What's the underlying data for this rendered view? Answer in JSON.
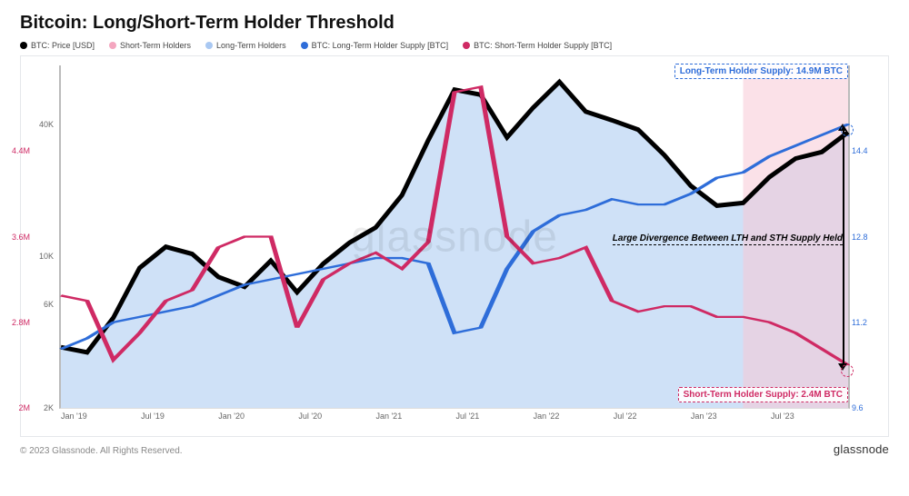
{
  "title": "Bitcoin: Long/Short-Term Holder Threshold",
  "legend": {
    "price": {
      "label": "BTC: Price [USD]",
      "color": "#000000"
    },
    "sth": {
      "label": "Short-Term Holders",
      "color": "#f4a6bf"
    },
    "lth": {
      "label": "Long-Term Holders",
      "color": "#a9c8f2"
    },
    "lth_sup": {
      "label": "BTC: Long-Term Holder Supply [BTC]",
      "color": "#2e6dd9"
    },
    "sth_sup": {
      "label": "BTC: Short-Term Holder Supply [BTC]",
      "color": "#cf2a64"
    }
  },
  "watermark": "glassnode",
  "footer": {
    "copyright": "© 2023 Glassnode. All Rights Reserved.",
    "brand": "glassnode"
  },
  "colors": {
    "price": "#000000",
    "lth_fill": "#cfe1f7",
    "sth_fill": "#f8c9d6",
    "lth_line": "#2e6dd9",
    "sth_line": "#cf2a64",
    "grid": "#e5e7eb",
    "bg": "#ffffff"
  },
  "axes": {
    "x": {
      "ticks": [
        "Jan '19",
        "Jul '19",
        "Jan '20",
        "Jul '20",
        "Jan '21",
        "Jul '21",
        "Jan '22",
        "Jul '22",
        "Jan '23",
        "Jul '23"
      ],
      "range": [
        0,
        60
      ]
    },
    "y_price": {
      "scale": "log",
      "ticks": [
        "2K",
        "6K",
        "10K",
        "40K"
      ],
      "tick_vals": [
        2000,
        6000,
        10000,
        40000
      ],
      "min": 2000,
      "max": 75000
    },
    "y_sth": {
      "ticks": [
        "2M",
        "2.8M",
        "3.6M",
        "4.4M"
      ],
      "tick_vals": [
        2.0,
        2.8,
        3.6,
        4.4
      ],
      "min": 2.0,
      "max": 5.2,
      "color": "#cf2a64"
    },
    "y_lth": {
      "ticks": [
        "9.6",
        "11.2",
        "12.8",
        "14.4"
      ],
      "tick_vals": [
        9.6,
        11.2,
        12.8,
        14.4
      ],
      "min": 9.6,
      "max": 16.0,
      "color": "#2e6dd9"
    }
  },
  "annotations": {
    "lth_box": {
      "text": "Long-Term Holder Supply: 14.9M BTC",
      "color": "#2e6dd9"
    },
    "sth_box": {
      "text": "Short-Term Holder Supply: 2.4M BTC",
      "color": "#cf2a64"
    },
    "divergence": {
      "text": "Large Divergence Between LTH and STH Supply Held",
      "color": "#000000"
    }
  },
  "sth_highlight": {
    "start_month": 52,
    "end_month": 60,
    "fill": "#f8c9d6"
  },
  "series": {
    "months": [
      0,
      2,
      4,
      6,
      8,
      10,
      12,
      14,
      16,
      18,
      20,
      22,
      24,
      26,
      28,
      30,
      32,
      34,
      36,
      38,
      40,
      42,
      44,
      46,
      48,
      50,
      52,
      54,
      56,
      58,
      60
    ],
    "price_usd": [
      3800,
      3600,
      5200,
      8800,
      11000,
      10200,
      8000,
      7200,
      9500,
      6800,
      9200,
      11500,
      13500,
      19000,
      34000,
      58000,
      55000,
      35000,
      48000,
      63000,
      46000,
      42000,
      38000,
      29000,
      21000,
      17000,
      17500,
      23000,
      28000,
      30000,
      37000
    ],
    "sth_supply_m": [
      3.05,
      3.0,
      2.45,
      2.7,
      3.0,
      3.1,
      3.5,
      3.6,
      3.6,
      2.75,
      3.2,
      3.35,
      3.45,
      3.3,
      3.55,
      4.95,
      5.0,
      3.6,
      3.35,
      3.4,
      3.5,
      3.0,
      2.9,
      2.95,
      2.95,
      2.85,
      2.85,
      2.8,
      2.7,
      2.55,
      2.4
    ],
    "lth_supply_m": [
      10.7,
      10.9,
      11.2,
      11.3,
      11.4,
      11.5,
      11.7,
      11.9,
      12.0,
      12.1,
      12.2,
      12.3,
      12.4,
      12.4,
      12.3,
      11.0,
      11.1,
      12.2,
      12.9,
      13.2,
      13.3,
      13.5,
      13.4,
      13.4,
      13.6,
      13.9,
      14.0,
      14.3,
      14.5,
      14.7,
      14.9
    ]
  },
  "style": {
    "line_width_price": 1.6,
    "line_width_supply": 1.8,
    "title_fontsize": 20,
    "legend_fontsize": 9,
    "axis_fontsize": 9,
    "annotation_fontsize": 11
  }
}
